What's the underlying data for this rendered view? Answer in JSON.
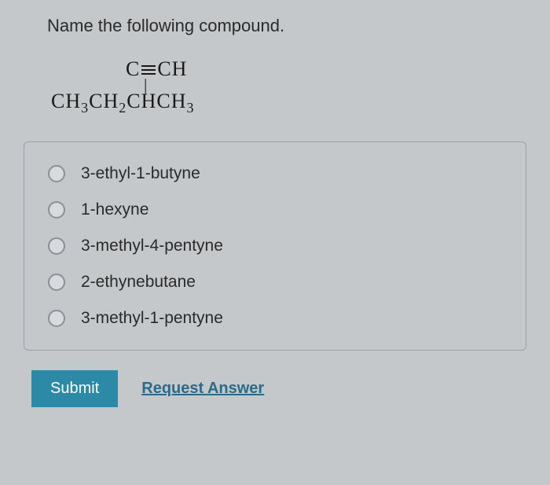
{
  "question": {
    "prompt": "Name the following compound.",
    "compound": {
      "line1_html": "C<span class='triple-bond'></span>CH",
      "line2_html": "CH<span class='sub'>3</span>CH<span class='sub'>2</span>CHCH<span class='sub'>3</span>"
    }
  },
  "options": [
    {
      "label": "3-ethyl-1-butyne"
    },
    {
      "label": "1-hexyne"
    },
    {
      "label": "3-methyl-4-pentyne"
    },
    {
      "label": "2-ethynebutane"
    },
    {
      "label": "3-methyl-1-pentyne"
    }
  ],
  "actions": {
    "submit_label": "Submit",
    "request_label": "Request Answer"
  },
  "style": {
    "background_color": "#c4c8cb",
    "text_color": "#2a2a2a",
    "box_border_color": "#9aa0a5",
    "radio_border_color": "#8a9095",
    "submit_bg": "#2c8aa6",
    "submit_fg": "#ffffff",
    "link_color": "#2c6a8a",
    "question_fontsize": 22,
    "option_fontsize": 21,
    "compound_fontsize": 26
  }
}
